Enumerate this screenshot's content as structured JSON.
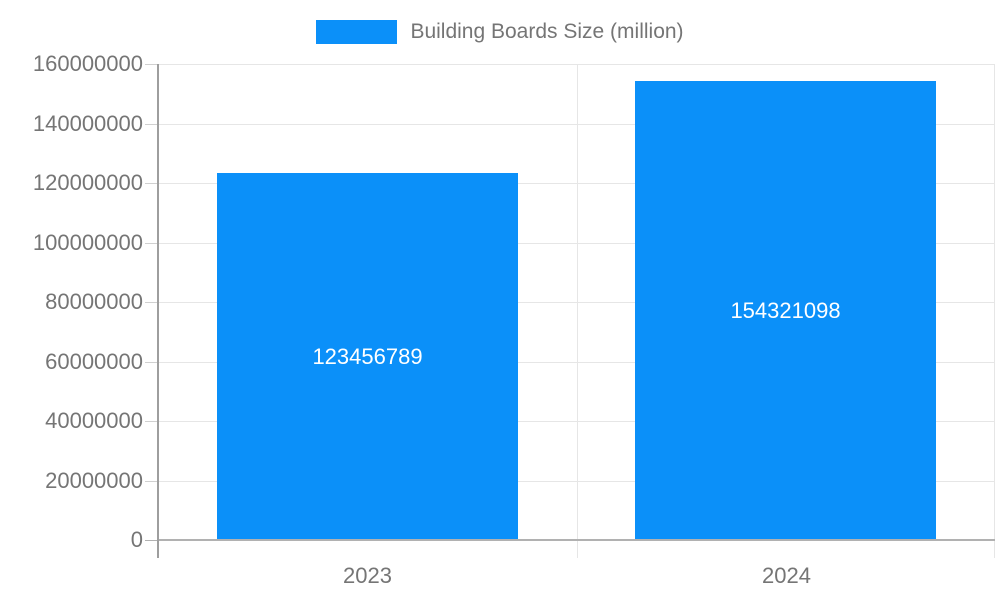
{
  "chart_data": {
    "type": "bar",
    "title": "Building Boards Size (million)",
    "legend": {
      "position": "top",
      "entries": [
        "Building Boards Size (million)"
      ]
    },
    "categories": [
      "2023",
      "2024"
    ],
    "series": [
      {
        "name": "Building Boards Size (million)",
        "values": [
          123456789,
          154321098
        ],
        "data_labels": [
          "123456789",
          "154321098"
        ]
      }
    ],
    "xlabel": "",
    "ylabel": "",
    "ylim": [
      0,
      160000000
    ],
    "ytick_step": 20000000,
    "yticks": [
      0,
      20000000,
      40000000,
      60000000,
      80000000,
      100000000,
      120000000,
      140000000,
      160000000
    ],
    "ytick_labels": [
      "0",
      "20000000",
      "40000000",
      "60000000",
      "80000000",
      "100000000",
      "120000000",
      "140000000",
      "160000000"
    ],
    "grid": true,
    "colors": {
      "bar": "#0b90f9",
      "grid_line": "#e6e6e6",
      "baseline": "#b1b1b1",
      "axis_line": "#9e9e9e",
      "tick": "#d0d0d0",
      "label_text": "#757575",
      "bar_label_text": "#ffffff"
    }
  }
}
